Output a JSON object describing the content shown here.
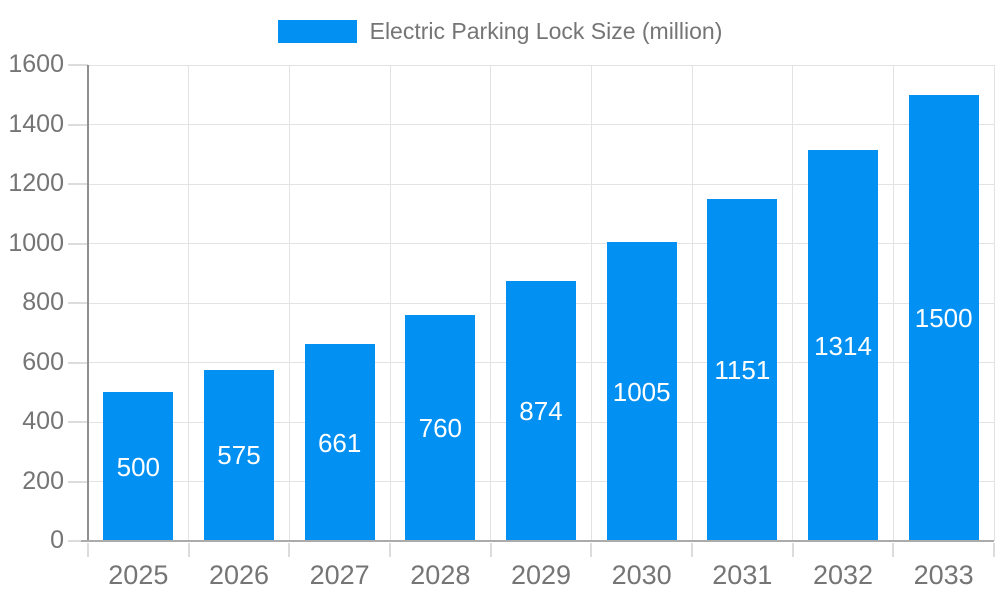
{
  "legend": {
    "label": "Electric Parking Lock Size (million)"
  },
  "chart_data": {
    "type": "bar",
    "title": "Electric Parking Lock Size (million)",
    "categories": [
      "2025",
      "2026",
      "2027",
      "2028",
      "2029",
      "2030",
      "2031",
      "2032",
      "2033"
    ],
    "values": [
      500,
      575,
      661,
      760,
      874,
      1005,
      1151,
      1314,
      1500
    ],
    "series": [
      {
        "name": "Electric Parking Lock Size (million)",
        "values": [
          500,
          575,
          661,
          760,
          874,
          1005,
          1151,
          1314,
          1500
        ]
      }
    ],
    "xlabel": "",
    "ylabel": "",
    "ylim": [
      0,
      1600
    ],
    "ytick_step": 200,
    "ytick_labels": [
      "0",
      "200",
      "400",
      "600",
      "800",
      "1000",
      "1200",
      "1400",
      "1600"
    ],
    "grid": true,
    "legend_position": "top-center",
    "bar_labels_visible": true,
    "colors": {
      "bar": "#0290f2",
      "bar_label_text": "#ffffff",
      "axis_text": "#757575",
      "grid_line": "#e3e3e3",
      "tick_line": "#dcdcdc",
      "y_axis_line": "#8f8f8f",
      "x_axis_line": "#ababab",
      "background": "#ffffff"
    }
  }
}
